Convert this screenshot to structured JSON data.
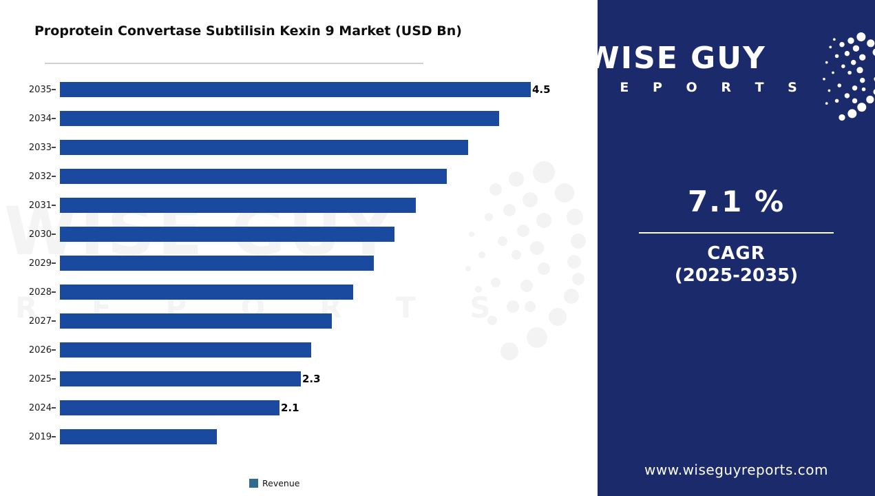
{
  "chart": {
    "title": "Proprotein Convertase Subtilisin Kexin 9 Market (USD Bn)",
    "legend_label": "Revenue",
    "bar_color": "#1a4aa0",
    "legend_color": "#2e6b8e"
  },
  "chart_data": {
    "type": "bar",
    "orientation": "horizontal",
    "title": "Proprotein Convertase Subtilisin Kexin 9 Market (USD Bn)",
    "xlabel": "",
    "ylabel": "",
    "categories": [
      "2035",
      "2034",
      "2033",
      "2032",
      "2031",
      "2030",
      "2029",
      "2028",
      "2027",
      "2026",
      "2025",
      "2024",
      "2019"
    ],
    "values": [
      4.5,
      4.2,
      3.9,
      3.7,
      3.4,
      3.2,
      3.0,
      2.8,
      2.6,
      2.4,
      2.3,
      2.1,
      1.5
    ],
    "data_labels": {
      "2035": "4.5",
      "2025": "2.3",
      "2024": "2.1"
    },
    "xlim": [
      0,
      4.7
    ],
    "legend": [
      "Revenue"
    ],
    "legend_position": "bottom",
    "grid": false
  },
  "sidebar": {
    "logo_line1": "WISE GUY",
    "logo_line2": "R E P O R T S",
    "cagr_value": "7.1 %",
    "cagr_label": "CAGR",
    "cagr_range": "(2025-2035)",
    "website": "www.wiseguyreports.com",
    "bg_color": "#1b2a6b"
  },
  "watermark": {
    "line1": "WISE GUY",
    "line2": "R E P O R T S"
  }
}
